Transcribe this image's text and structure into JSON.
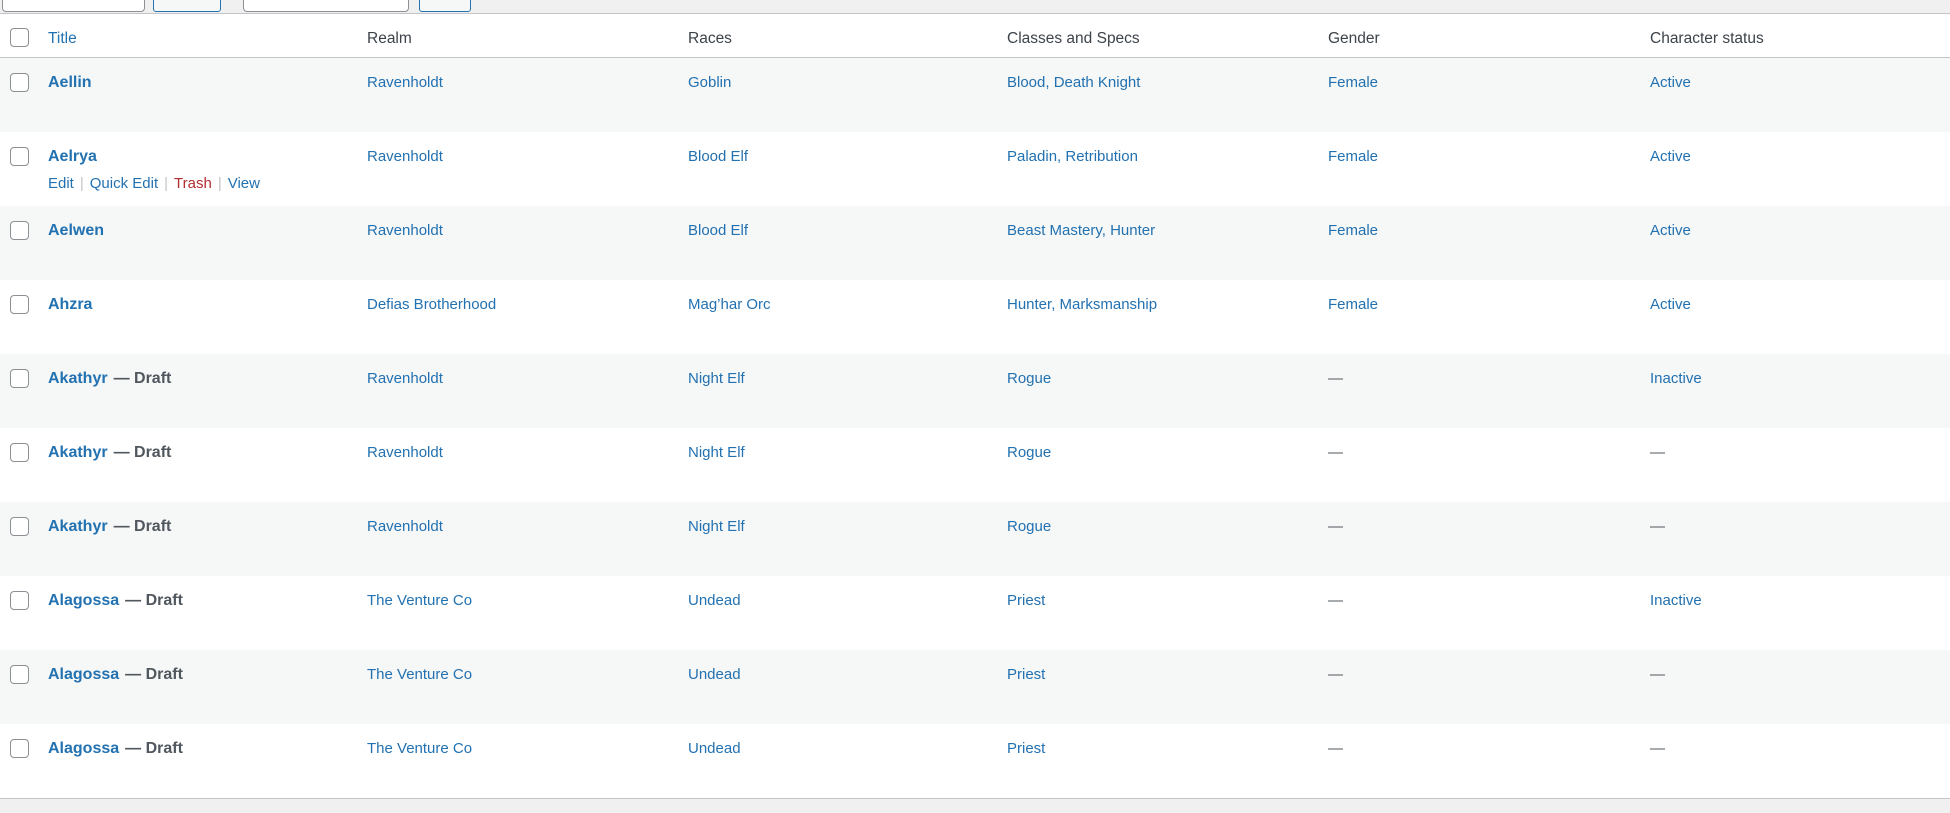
{
  "colors": {
    "accent": "#2271b1",
    "trash": "#b32d2e",
    "text": "#3c434a",
    "muted": "#50575e",
    "stripe": "#f6f7f7",
    "border": "#c3c4c7",
    "page_bg": "#f0f0f1"
  },
  "toolbar": {
    "controls": [
      {
        "key": "bulk-actions-select",
        "type": "select"
      },
      {
        "key": "apply-button",
        "type": "button"
      },
      {
        "key": "filter-select",
        "type": "select"
      },
      {
        "key": "filter-button",
        "type": "button"
      }
    ]
  },
  "table": {
    "dash": "—",
    "action_separator": "|",
    "columns": [
      {
        "key": "title",
        "label": "Title",
        "sortable": true
      },
      {
        "key": "realm",
        "label": "Realm",
        "sortable": false
      },
      {
        "key": "races",
        "label": "Races",
        "sortable": false
      },
      {
        "key": "classes",
        "label": "Classes and Specs",
        "sortable": false
      },
      {
        "key": "gender",
        "label": "Gender",
        "sortable": false
      },
      {
        "key": "status",
        "label": "Character status",
        "sortable": false
      }
    ],
    "row_actions": [
      {
        "key": "edit",
        "label": "Edit"
      },
      {
        "key": "quick-edit",
        "label": "Quick Edit"
      },
      {
        "key": "trash",
        "label": "Trash"
      },
      {
        "key": "view",
        "label": "View"
      }
    ],
    "rows": [
      {
        "title": "Aellin",
        "state": "",
        "realm": "Ravenholdt",
        "races": "Goblin",
        "classes": "Blood, Death Knight",
        "gender": "Female",
        "status": "Active",
        "show_actions": false
      },
      {
        "title": "Aelrya",
        "state": "",
        "realm": "Ravenholdt",
        "races": "Blood Elf",
        "classes": "Paladin, Retribution",
        "gender": "Female",
        "status": "Active",
        "show_actions": true
      },
      {
        "title": "Aelwen",
        "state": "",
        "realm": "Ravenholdt",
        "races": "Blood Elf",
        "classes": "Beast Mastery, Hunter",
        "gender": "Female",
        "status": "Active",
        "show_actions": false
      },
      {
        "title": "Ahzra",
        "state": "",
        "realm": "Defias Brotherhood",
        "races": "Mag’har Orc",
        "classes": "Hunter, Marksmanship",
        "gender": "Female",
        "status": "Active",
        "show_actions": false
      },
      {
        "title": "Akathyr",
        "state": "— Draft",
        "realm": "Ravenholdt",
        "races": "Night Elf",
        "classes": "Rogue",
        "gender": "—",
        "status": "Inactive",
        "show_actions": false
      },
      {
        "title": "Akathyr",
        "state": "— Draft",
        "realm": "Ravenholdt",
        "races": "Night Elf",
        "classes": "Rogue",
        "gender": "—",
        "status": "—",
        "show_actions": false
      },
      {
        "title": "Akathyr",
        "state": "— Draft",
        "realm": "Ravenholdt",
        "races": "Night Elf",
        "classes": "Rogue",
        "gender": "—",
        "status": "—",
        "show_actions": false
      },
      {
        "title": "Alagossa",
        "state": "— Draft",
        "realm": "The Venture Co",
        "races": "Undead",
        "classes": "Priest",
        "gender": "—",
        "status": "Inactive",
        "show_actions": false
      },
      {
        "title": "Alagossa",
        "state": "— Draft",
        "realm": "The Venture Co",
        "races": "Undead",
        "classes": "Priest",
        "gender": "—",
        "status": "—",
        "show_actions": false
      },
      {
        "title": "Alagossa",
        "state": "— Draft",
        "realm": "The Venture Co",
        "races": "Undead",
        "classes": "Priest",
        "gender": "—",
        "status": "—",
        "show_actions": false
      }
    ]
  }
}
